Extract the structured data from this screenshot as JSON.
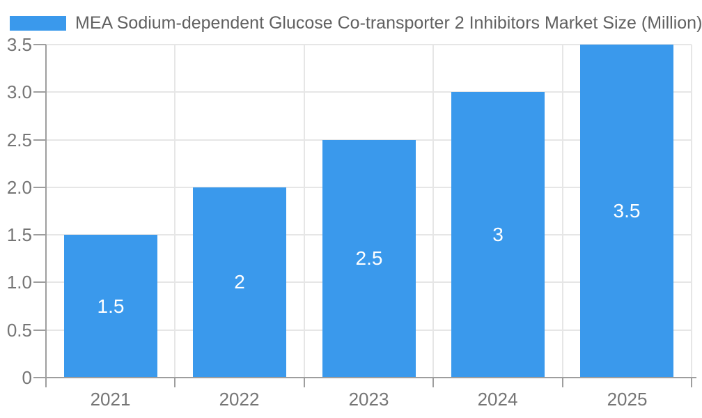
{
  "chart_data": {
    "type": "bar",
    "title": "MEA Sodium-dependent Glucose Co-transporter 2 Inhibitors Market Size (Million)",
    "categories": [
      "2021",
      "2022",
      "2023",
      "2024",
      "2025"
    ],
    "values": [
      1.5,
      2,
      2.5,
      3,
      3.5
    ],
    "value_labels": [
      "1.5",
      "2",
      "2.5",
      "3",
      "3.5"
    ],
    "y_ticks": [
      "0",
      "0.5",
      "1.0",
      "1.5",
      "2.0",
      "2.5",
      "3.0",
      "3.5"
    ],
    "ylim": [
      0,
      3.5
    ],
    "xlabel": "",
    "ylabel": "",
    "grid": true,
    "legend_position": "top-left"
  },
  "colors": {
    "bar": "#3a99ec",
    "grid": "#e6e6e6",
    "axis": "#9e9e9e",
    "tick_text": "#757575",
    "title_text": "#616161",
    "value_label_text": "#ffffff",
    "background": "#ffffff"
  }
}
